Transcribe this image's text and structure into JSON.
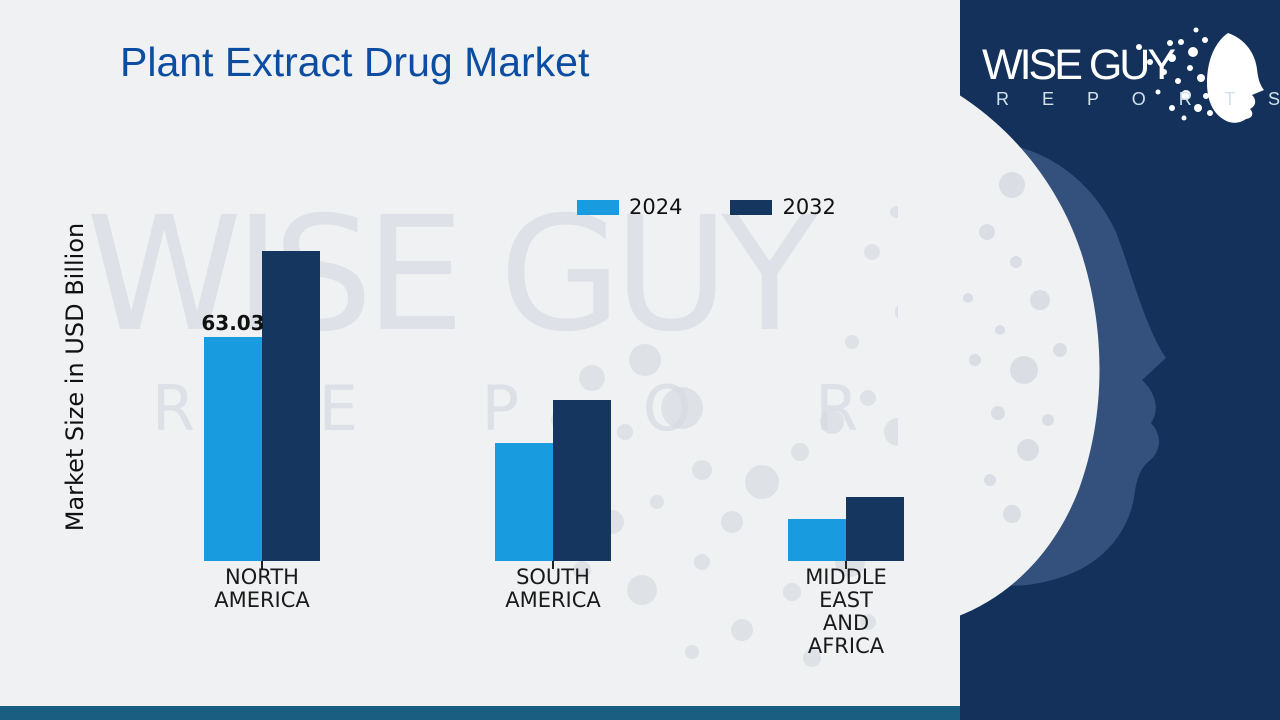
{
  "page": {
    "background_color": "#f0f1f2",
    "bottom_bar_color": "#1a5f82"
  },
  "header": {
    "title": "Plant Extract Drug Market",
    "title_color": "#0c4da2"
  },
  "watermark": {
    "line1": "WISE GUY",
    "line2": "R E P O R T S"
  },
  "brand": {
    "logo_line1": "WISE GUY",
    "logo_line2": "R E P O R T S",
    "panel_color": "#13315a"
  },
  "chart_data": {
    "type": "bar",
    "title": "Plant Extract Drug Market",
    "xlabel": "",
    "ylabel": "Market Size in USD Billion",
    "categories": [
      "NORTH\nAMERICA",
      "SOUTH\nAMERICA",
      "MIDDLE\nEAST\nAND\nAFRICA"
    ],
    "series": [
      {
        "name": "2024",
        "color": "#189cdf",
        "values": [
          63.03,
          33.2,
          11.8
        ]
      },
      {
        "name": "2032",
        "color": "#14365f",
        "values": [
          87.2,
          45.3,
          18.0
        ]
      }
    ],
    "value_labels": [
      {
        "series_index": 0,
        "category_index": 0,
        "text": "63.03"
      }
    ],
    "ylim": [
      0,
      95
    ],
    "grid": false,
    "legend_position": "top-center"
  }
}
